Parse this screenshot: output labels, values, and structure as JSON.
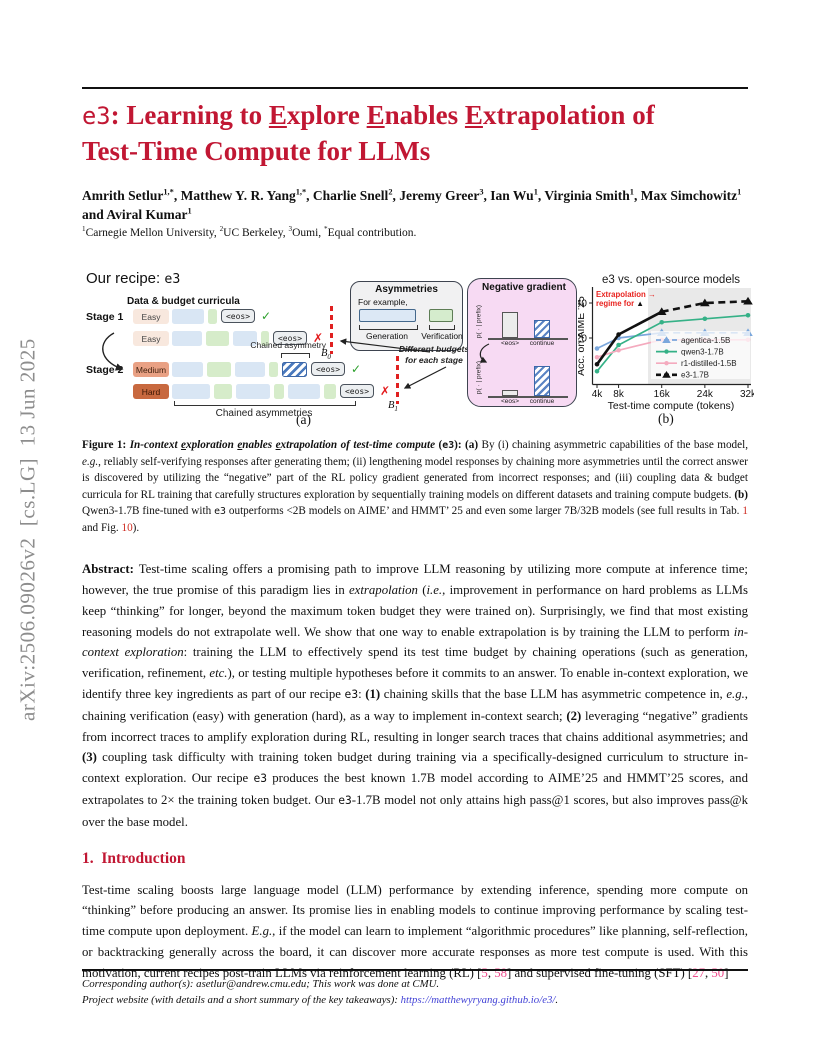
{
  "sidebar": {
    "arxiv_stamp": "arXiv:2506.09026v2  [cs.LG]  13 Jun 2025"
  },
  "title": {
    "line1": [
      {
        "t": "e3",
        "s": "m"
      },
      {
        "t": ": Learning to "
      },
      {
        "t": "E",
        "s": "u"
      },
      {
        "t": "xplore "
      },
      {
        "t": "E",
        "s": "u"
      },
      {
        "t": "nables "
      },
      {
        "t": "E",
        "s": "u"
      },
      {
        "t": "xtrapolation of"
      }
    ],
    "line2": [
      {
        "t": "Test-Time Compute for LLMs"
      }
    ]
  },
  "authors": {
    "line1": [
      {
        "t": "Amrith Setlur"
      },
      {
        "t": "1,*",
        "s": "sup"
      },
      {
        "t": ", Matthew Y. R. Yang"
      },
      {
        "t": "1,*",
        "s": "sup"
      },
      {
        "t": ", Charlie Snell"
      },
      {
        "t": "2",
        "s": "sup"
      },
      {
        "t": ", Jeremy Greer"
      },
      {
        "t": "3",
        "s": "sup"
      },
      {
        "t": ", Ian Wu"
      },
      {
        "t": "1",
        "s": "sup"
      },
      {
        "t": ", Virginia Smith"
      },
      {
        "t": "1",
        "s": "sup"
      },
      {
        "t": ", Max Simchowitz"
      },
      {
        "t": "1",
        "s": "sup"
      }
    ],
    "line2": [
      {
        "t": "and Aviral Kumar"
      },
      {
        "t": "1",
        "s": "sup"
      }
    ],
    "affiliations": [
      {
        "t": "1",
        "s": "sup"
      },
      {
        "t": "Carnegie Mellon University, "
      },
      {
        "t": "2",
        "s": "sup"
      },
      {
        "t": "UC Berkeley, "
      },
      {
        "t": "3",
        "s": "sup"
      },
      {
        "t": "Oumi, "
      },
      {
        "t": "*",
        "s": "sup"
      },
      {
        "t": "Equal contribution."
      }
    ]
  },
  "figure": {
    "panel_a": {
      "heading": [
        {
          "t": "Our recipe: "
        },
        {
          "t": "e3",
          "s": "m"
        }
      ],
      "curricula_label": "Data & budget curricula",
      "stage1_label": "Stage 1",
      "stage2_label": "Stage 2",
      "eos_label": "<eos>",
      "check_glyph": "✓",
      "cross_glyph": "✗",
      "chained_asymmetry_label": "Chained asymmetry",
      "chained_asymmetries_label": "Chained asymmetries",
      "b0_label": [
        {
          "t": "B",
          "s": "i"
        },
        {
          "t": "0",
          "s": "isub"
        }
      ],
      "b1_label": [
        {
          "t": "B",
          "s": "i"
        },
        {
          "t": "1",
          "s": "isub"
        }
      ],
      "panel_label": "(a)",
      "rows": [
        {
          "difficulty": "Easy",
          "chip": "easy",
          "mark": "check",
          "blocks": [
            [
              "blue",
              32
            ],
            [
              "green",
              9
            ]
          ]
        },
        {
          "difficulty": "Easy",
          "chip": "easy",
          "mark": "cross",
          "blocks": [
            [
              "blue",
              30
            ],
            [
              "green",
              23
            ],
            [
              "blue",
              24
            ],
            [
              "green",
              8
            ]
          ]
        },
        {
          "difficulty": "Medium",
          "chip": "medium",
          "mark": "check",
          "blocks": [
            [
              "blue",
              31
            ],
            [
              "green",
              24
            ],
            [
              "blue",
              30
            ],
            [
              "green",
              9
            ],
            [
              "hatch",
              25
            ]
          ]
        },
        {
          "difficulty": "Hard",
          "chip": "hard",
          "mark": "cross",
          "blocks": [
            [
              "blue",
              38
            ],
            [
              "green",
              18
            ],
            [
              "blue",
              34
            ],
            [
              "green",
              10
            ],
            [
              "blue",
              32
            ],
            [
              "green",
              12
            ]
          ]
        }
      ]
    },
    "asymmetries": {
      "title": "Asymmetries",
      "subtitle": "For example,",
      "items": [
        {
          "label": "Generation",
          "color": "blue"
        },
        {
          "label": "Verification",
          "color": "green"
        }
      ]
    },
    "budget_note": {
      "line1": "Different budgets",
      "line2": "for each stage"
    },
    "negative_gradient": {
      "title": "Negative gradient",
      "ylabel": "p( · | prefix)",
      "charts": [
        {
          "bars": [
            {
              "label": "<eos>",
              "h": 26,
              "type": "solid"
            },
            {
              "label": "continue",
              "h": 18,
              "type": "hatch"
            }
          ]
        },
        {
          "bars": [
            {
              "label": "<eos>",
              "h": 6,
              "type": "solid"
            },
            {
              "label": "continue",
              "h": 30,
              "type": "hatch"
            }
          ]
        }
      ]
    },
    "panel_b": {
      "panel_label": "(b)"
    }
  },
  "chart_data": {
    "type": "line",
    "title": "e3 vs. open-source models",
    "xlabel": "Test-time compute (tokens)",
    "ylabel": "Acc. on AIME '25",
    "x_ticks": [
      "4k",
      "8k",
      "16k",
      "24k",
      "32k"
    ],
    "x_values": [
      4,
      8,
      16,
      24,
      32
    ],
    "y_ticks": [
      20,
      40
    ],
    "ylim": [
      -6,
      48
    ],
    "grid": false,
    "legend_position": "lower right",
    "shaded_region_note": "extrapolation regime shading from ~14k to 32k tokens",
    "annotation": {
      "line1": "Extrapolation →",
      "line2": "regime for ",
      "marker": "▲",
      "color": "#e8231f"
    },
    "series": [
      {
        "name": "agentica-1.5B",
        "color": "#7ba7dc",
        "width": 1.7,
        "marker": "triangle",
        "dash_after_index": 2,
        "values": [
          14,
          20,
          23,
          23,
          23
        ]
      },
      {
        "name": "qwen3-1.7B",
        "color": "#35b187",
        "width": 1.7,
        "marker": "circle",
        "dash_after_index": null,
        "values": [
          1,
          16,
          29,
          31,
          33
        ]
      },
      {
        "name": "r1-distilled-1.5B",
        "color": "#f4aabe",
        "width": 1.7,
        "marker": "circle",
        "dash_after_index": null,
        "values": [
          9,
          13,
          19,
          19,
          19
        ]
      },
      {
        "name": "e3-1.7B",
        "color": "#111111",
        "width": 2.6,
        "marker": "triangle",
        "dash_after_index": 2,
        "values": [
          5,
          22,
          35,
          40,
          41
        ]
      }
    ]
  },
  "caption": {
    "segments": [
      {
        "t": "Figure 1: ",
        "s": "b"
      },
      {
        "t": "In-context ",
        "s": "bi"
      },
      {
        "t": "e",
        "s": "biu"
      },
      {
        "t": "xploration ",
        "s": "bi"
      },
      {
        "t": "e",
        "s": "biu"
      },
      {
        "t": "nables ",
        "s": "bi"
      },
      {
        "t": "e",
        "s": "biu"
      },
      {
        "t": "xtrapolation of test-time compute ",
        "s": "bi"
      },
      {
        "t": "(",
        "s": "b"
      },
      {
        "t": "e3",
        "s": "bm"
      },
      {
        "t": "): ",
        "s": "b"
      },
      {
        "t": "(a)",
        "s": "b"
      },
      {
        "t": " By (i) chaining asymmetric capabilities of the base model, "
      },
      {
        "t": "e.g.",
        "s": "i"
      },
      {
        "t": ", reliably self-verifying responses after generating them; (ii) lengthening model responses by chaining more asymmetries until the correct answer is discovered by utilizing the “negative” part of the RL policy gradient generated from incorrect responses; and (iii) coupling data & budget curricula for RL training that carefully structures exploration by sequentially training models on different datasets and training compute budgets. "
      },
      {
        "t": "(b)",
        "s": "b"
      },
      {
        "t": " Qwen3-1.7B fine-tuned with "
      },
      {
        "t": "e3",
        "s": "m"
      },
      {
        "t": " outperforms <2B models on AIME’ and HMMT’ 25 and even some larger 7B/32B models (see full results in Tab. "
      },
      {
        "t": "1",
        "s": "link"
      },
      {
        "t": " and Fig. "
      },
      {
        "t": "10",
        "s": "link"
      },
      {
        "t": ")."
      }
    ]
  },
  "abstract": {
    "segments": [
      {
        "t": "Abstract: ",
        "s": "b"
      },
      {
        "t": "Test-time scaling offers a promising path to improve LLM reasoning by utilizing more compute at inference time; however, the true promise of this paradigm lies in "
      },
      {
        "t": "extrapolation",
        "s": "i"
      },
      {
        "t": " ("
      },
      {
        "t": "i.e.",
        "s": "i"
      },
      {
        "t": ", improvement in performance on hard problems as LLMs keep “thinking” for longer, beyond the maximum token budget they were trained on). Surprisingly, we find that most existing reasoning models do not extrapolate well. We show that one way to enable extrapolation is by training the LLM to perform "
      },
      {
        "t": "in-context exploration",
        "s": "i"
      },
      {
        "t": ": training the LLM to effectively spend its test time budget by chaining operations (such as generation, verification, refinement, "
      },
      {
        "t": "etc.",
        "s": "i"
      },
      {
        "t": "), or testing multiple hypotheses before it commits to an answer. To enable in-context exploration, we identify three key ingredients as part of our recipe "
      },
      {
        "t": "e3",
        "s": "m"
      },
      {
        "t": ": "
      },
      {
        "t": "(1)",
        "s": "b"
      },
      {
        "t": " chaining skills that the base LLM has asymmetric competence in, "
      },
      {
        "t": "e.g.",
        "s": "i"
      },
      {
        "t": ", chaining verification (easy) with generation (hard), as a way to implement in-context search; "
      },
      {
        "t": "(2)",
        "s": "b"
      },
      {
        "t": " leveraging “negative” gradients from incorrect traces to amplify exploration during RL, resulting in longer search traces that chains additional asymmetries; and "
      },
      {
        "t": "(3)",
        "s": "b"
      },
      {
        "t": " coupling task difficulty with training token budget during training via a specifically-designed curriculum to structure in-context exploration. Our recipe "
      },
      {
        "t": "e3",
        "s": "m"
      },
      {
        "t": " produces the best known 1.7B model according to AIME’25 and HMMT’25 scores, and extrapolates to 2× the training token budget. Our "
      },
      {
        "t": "e3",
        "s": "m"
      },
      {
        "t": "-1.7B model not only attains high pass@1 scores, but also improves pass@k over the base model."
      }
    ]
  },
  "section1": {
    "heading": "1.  Introduction",
    "segments": [
      {
        "t": "Test-time scaling boosts large language model (LLM) performance by extending inference, spending more compute on “thinking” before producing an answer. Its promise lies in enabling models to continue improving performance by scaling test-time compute upon deployment. "
      },
      {
        "t": "E.g.",
        "s": "i"
      },
      {
        "t": ", if the model can learn to implement “algorithmic procedures” like planning, self-reflection, or backtracking generally across the board, it can discover more accurate responses as more test compute is used. With this motivation, current recipes post-train LLMs via reinforcement learning (RL) ["
      },
      {
        "t": "5",
        "s": "cite"
      },
      {
        "t": ", "
      },
      {
        "t": "58",
        "s": "cite"
      },
      {
        "t": "] and supervised fine-tuning (SFT) ["
      },
      {
        "t": "27",
        "s": "cite"
      },
      {
        "t": ", "
      },
      {
        "t": "50",
        "s": "cite"
      },
      {
        "t": "]"
      }
    ]
  },
  "footer": {
    "line1": [
      {
        "t": "Corresponding author(s): asetlur@andrew.cmu.edu; This work was done at CMU.",
        "s": "i"
      }
    ],
    "line2": [
      {
        "t": "Project website (with details and a short summary of the key takeaways): ",
        "s": "i"
      },
      {
        "t": "https://matthewyryang.github.io/e3/",
        "s": "ilink"
      },
      {
        "t": ".",
        "s": "i"
      }
    ]
  }
}
